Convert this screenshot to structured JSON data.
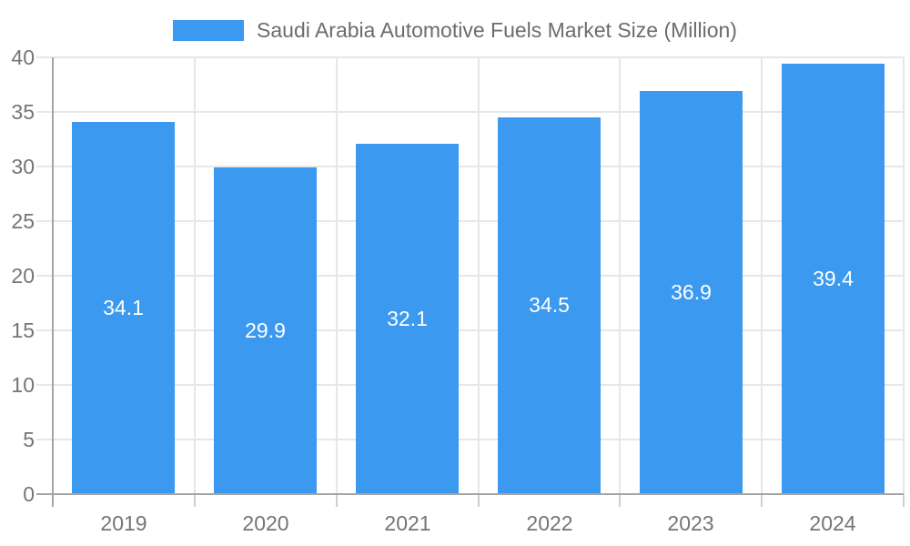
{
  "chart_data": {
    "type": "bar",
    "title": "Saudi Arabia Automotive Fuels Market Size (Million)",
    "series_name": "Saudi Arabia Automotive Fuels Market Size (Million)",
    "categories": [
      "2019",
      "2020",
      "2021",
      "2022",
      "2023",
      "2024"
    ],
    "values": [
      34.1,
      29.9,
      32.1,
      34.5,
      36.9,
      39.4
    ],
    "value_labels": [
      "34.1",
      "29.9",
      "32.1",
      "34.5",
      "36.9",
      "39.4"
    ],
    "xlabel": "",
    "ylabel": "",
    "ylim": [
      0,
      40
    ],
    "ytick_step": 5,
    "yticks": [
      0,
      5,
      10,
      15,
      20,
      25,
      30,
      35,
      40
    ],
    "grid": true,
    "legend_position": "top",
    "value_label_position": "inside-center",
    "colors": {
      "bar": "#3B99EF",
      "value_label": "#FFFFFF",
      "axis_text": "#757575",
      "legend_text": "#6C6C6C",
      "grid_line": "#E7E7E7",
      "axis_line": "#A5A5A5",
      "boundary_tick": "#CFCFCF"
    }
  }
}
